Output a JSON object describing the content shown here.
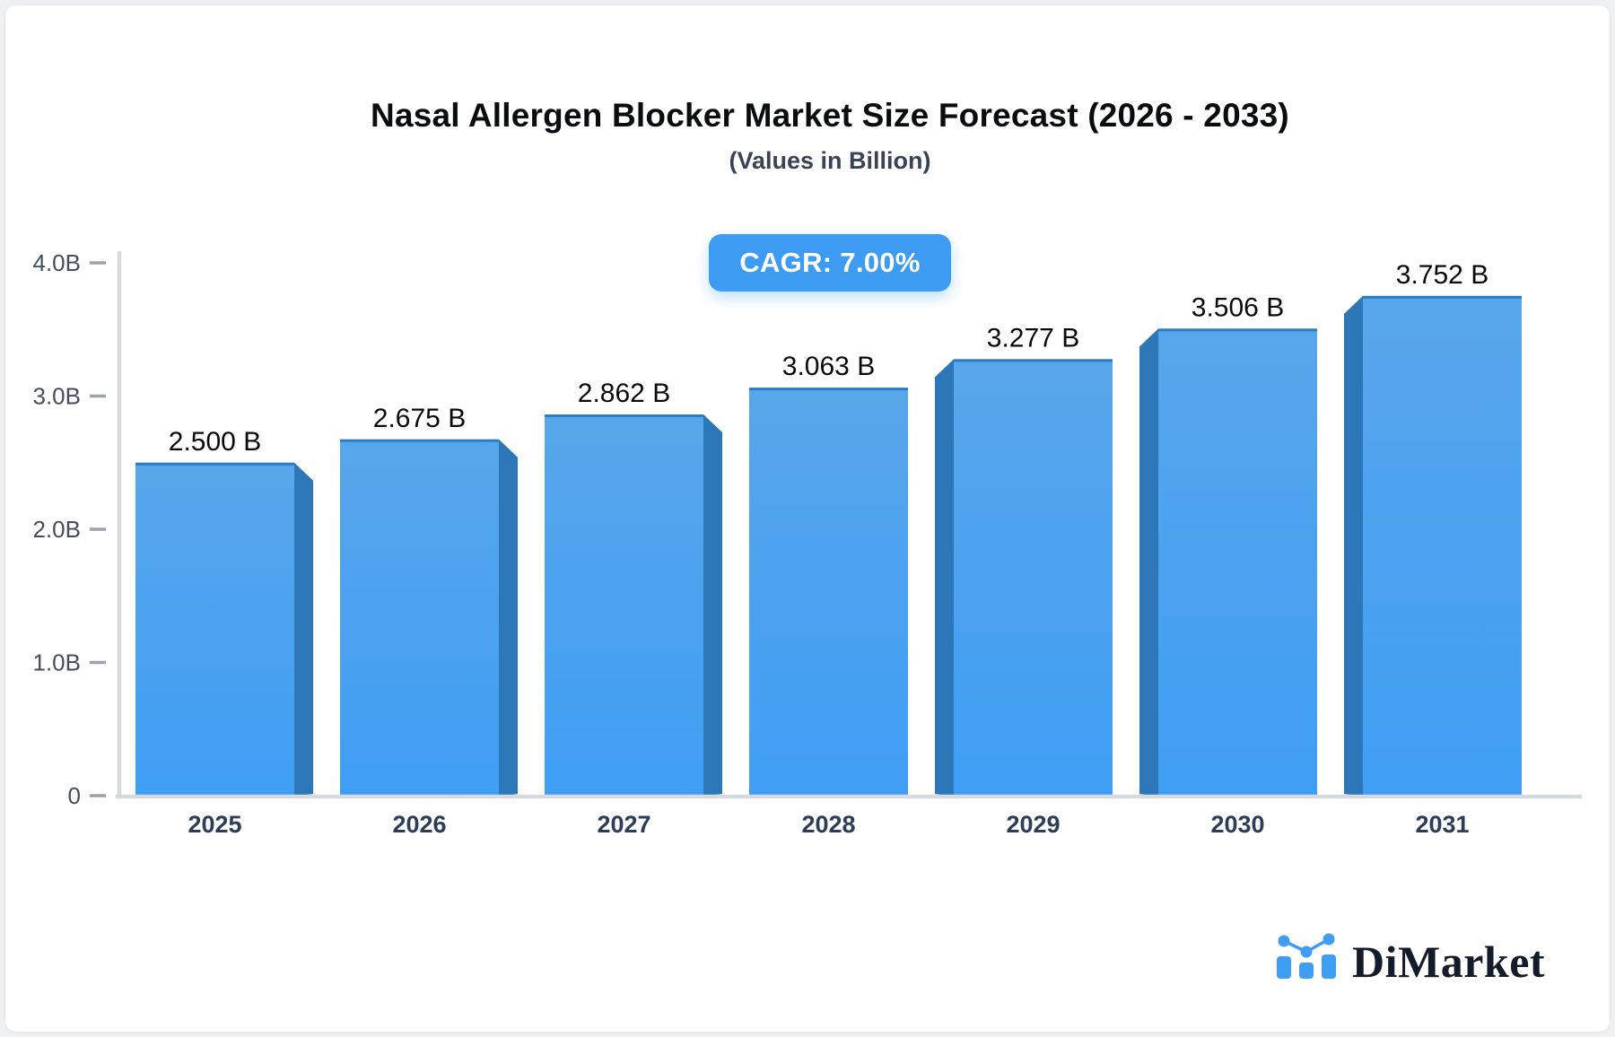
{
  "page": {
    "background": "#eef0f2",
    "card_background": "#ffffff"
  },
  "header": {
    "title": "Nasal Allergen Blocker Market Size Forecast (2026 - 2033)",
    "subtitle": "(Values in Billion)"
  },
  "badge": {
    "label": "CAGR: 7.00%",
    "background": "#3d9cf1",
    "text_color": "#ffffff"
  },
  "chart_data": {
    "type": "bar",
    "title": "Nasal Allergen Blocker Market Size Forecast (2026 - 2033)",
    "subtitle": "(Values in Billion)",
    "categories": [
      "2025",
      "2026",
      "2027",
      "2028",
      "2029",
      "2030",
      "2031"
    ],
    "values": [
      2.5,
      2.675,
      2.862,
      3.063,
      3.277,
      3.506,
      3.752
    ],
    "value_labels": [
      "2.500 B",
      "2.675 B",
      "2.862 B",
      "3.063 B",
      "3.277 B",
      "3.506 B",
      "3.752 B"
    ],
    "y_ticks": [
      {
        "value": 4.0,
        "label": "4.0B"
      },
      {
        "value": 3.0,
        "label": "3.0B"
      },
      {
        "value": 2.0,
        "label": "2.0B"
      },
      {
        "value": 1.0,
        "label": "1.0B"
      },
      {
        "value": 0,
        "label": "0"
      }
    ],
    "ylim": [
      0,
      4.0
    ],
    "xlabel": "",
    "ylabel": "",
    "grid": false,
    "legend": false,
    "colors": {
      "bar_face_top": "#58a6ea",
      "bar_face_bottom": "#3f9ef4",
      "bar_side": "#2d76b7",
      "bar_top_edge": "#2c7dc6",
      "axis_line": "#d6d9de",
      "tick_mark": "#9ba2ad",
      "y_tick_label": "#454e5c",
      "x_tick_label": "#2e3d57",
      "value_label": "#0a0a0a"
    }
  },
  "footer": {
    "brand": "DiMarket",
    "brand_color": "#141c2a",
    "icon": "bar-line-chart-icon",
    "icon_color": "#3f9df3"
  }
}
